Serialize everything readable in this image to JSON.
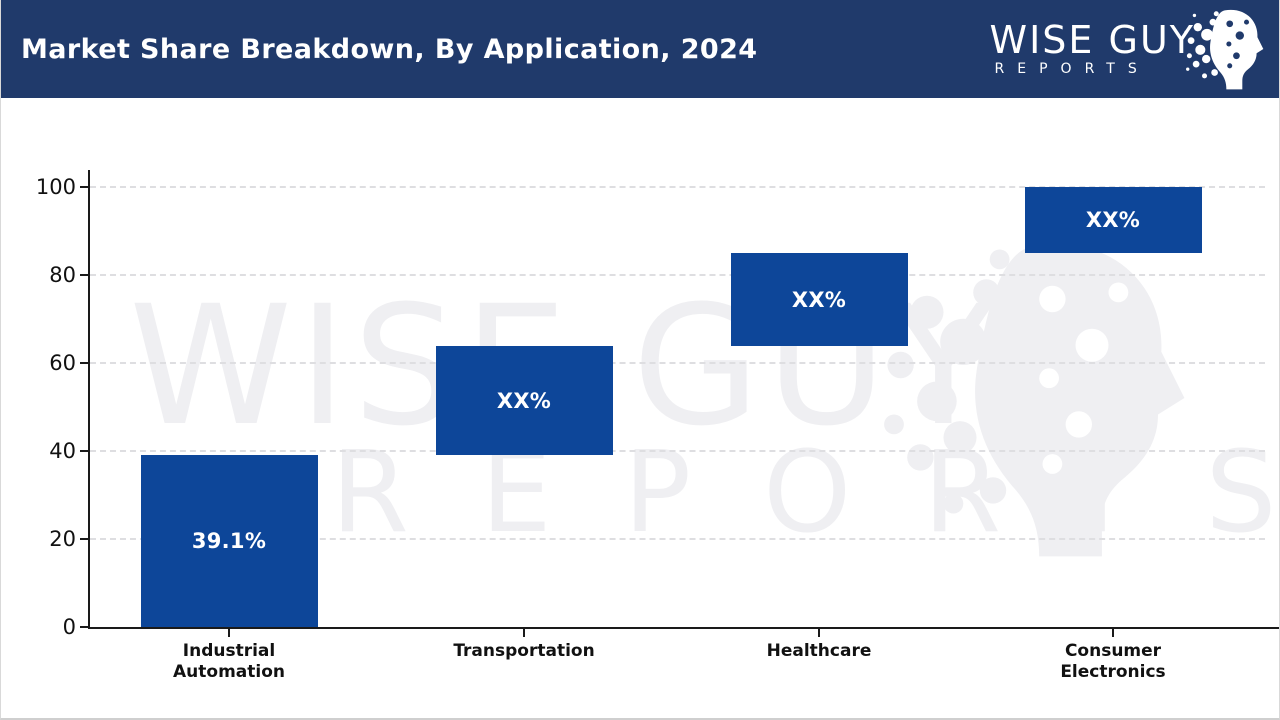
{
  "header": {
    "title": "Market Share Breakdown, By Application, 2024",
    "bg_color": "#203a6b",
    "logo": {
      "line1": "WISE GUY",
      "line2": "REPORTS"
    }
  },
  "watermark": {
    "line1": "WISE GUY",
    "line2": "REPORTS"
  },
  "chart_data": {
    "type": "bar",
    "subtype": "waterfall",
    "title": "Market Share Breakdown, By Application, 2024",
    "xlabel": "",
    "ylabel": "",
    "ylim": [
      0,
      100
    ],
    "yticks": [
      0,
      20,
      40,
      60,
      80,
      100
    ],
    "grid": "horizontal-dashed",
    "legend": "none",
    "bar_color": "#0d4699",
    "bar_label_color": "#ffffff",
    "categories": [
      "Industrial Automation",
      "Transportation",
      "Healthcare",
      "Consumer Electronics"
    ],
    "categories_display": [
      [
        "Industrial",
        "Automation"
      ],
      [
        "Transportation"
      ],
      [
        "Healthcare"
      ],
      [
        "Consumer",
        "Electronics"
      ]
    ],
    "segments": [
      {
        "category": "Industrial Automation",
        "start": 0,
        "end": 39.1,
        "value": 39.1,
        "label": "39.1%"
      },
      {
        "category": "Transportation",
        "start": 39.1,
        "end": 63.8,
        "value": 24.7,
        "label": "XX%"
      },
      {
        "category": "Healthcare",
        "start": 63.8,
        "end": 85.0,
        "value": 21.2,
        "label": "XX%"
      },
      {
        "category": "Consumer Electronics",
        "start": 85.0,
        "end": 100.0,
        "value": 15.0,
        "label": "XX%"
      }
    ]
  }
}
